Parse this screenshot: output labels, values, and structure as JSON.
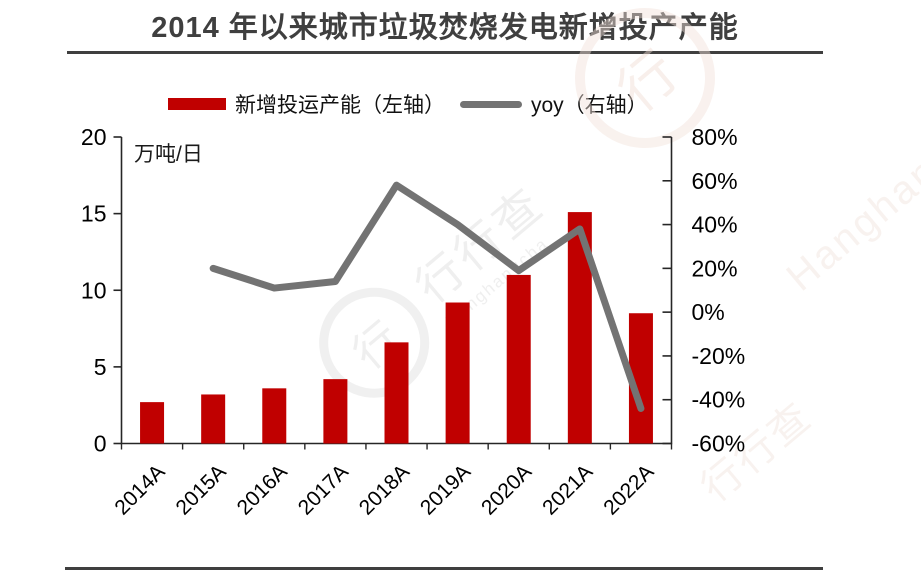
{
  "title": "2014 年以来城市垃圾焚烧发电新增投产产能",
  "legend": {
    "bar_label": "新增投运产能（左轴）",
    "line_label": "yoy（右轴）"
  },
  "watermark": {
    "text": "行行查",
    "subtext": "Hanghangcha",
    "glyph": "行"
  },
  "colors": {
    "bar": "#c00000",
    "line": "#737373",
    "title": "#3f3f3f",
    "axis": "#262626"
  },
  "chart_data": {
    "type": "bar",
    "title": "2014 年以来城市垃圾焚烧发电新增投产产能",
    "categories": [
      "2014A",
      "2015A",
      "2016A",
      "2017A",
      "2018A",
      "2019A",
      "2020A",
      "2021A",
      "2022A"
    ],
    "series": [
      {
        "name": "新增投运产能（左轴）",
        "type": "bar",
        "axis": "left",
        "color": "#c00000",
        "values": [
          2.7,
          3.2,
          3.6,
          4.2,
          6.6,
          9.2,
          11.0,
          15.1,
          8.5
        ]
      },
      {
        "name": "yoy（右轴）",
        "type": "line",
        "axis": "right",
        "color": "#737373",
        "values": [
          null,
          20,
          11,
          14,
          58,
          40,
          19,
          38,
          -44
        ]
      }
    ],
    "left_axis": {
      "label": "万吨/日",
      "min": 0,
      "max": 20,
      "tick_values": [
        0,
        5,
        10,
        15,
        20
      ],
      "tick_labels": [
        "0",
        "5",
        "10",
        "15",
        "20"
      ]
    },
    "right_axis": {
      "min": -60,
      "max": 80,
      "tick_values": [
        80,
        60,
        40,
        20,
        0,
        -20,
        -40,
        -60
      ],
      "tick_labels": [
        "80%",
        "60%",
        "40%",
        "20%",
        "0%",
        "-20%",
        "-40%",
        "-60%"
      ]
    },
    "grid": false,
    "legend_position": "top"
  }
}
